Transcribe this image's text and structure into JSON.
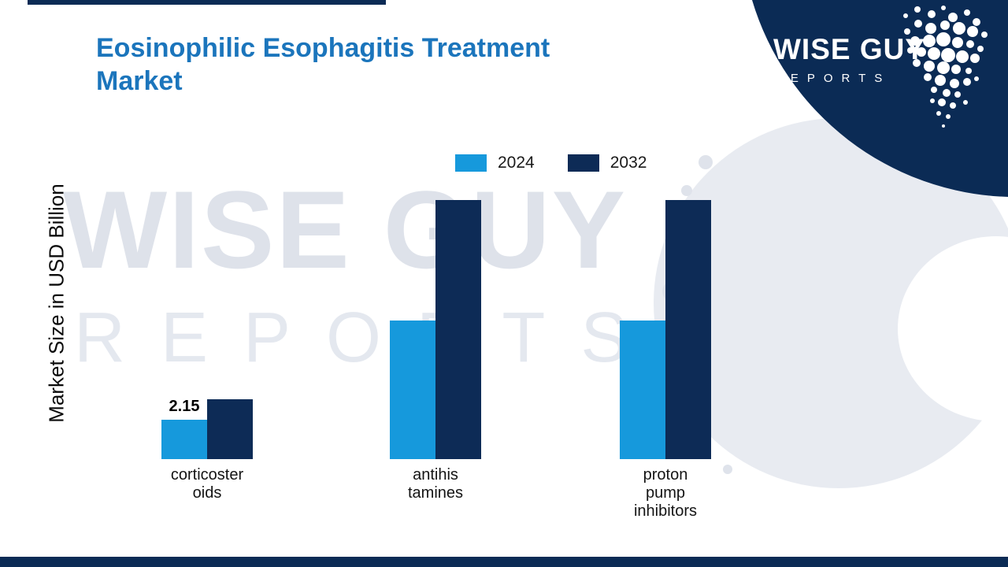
{
  "page": {
    "title": "Eosinophilic Esophagitis Treatment\nMarket"
  },
  "logo": {
    "brand_line1": "WISE GUY",
    "brand_line2": "REPORTS"
  },
  "watermark": {
    "line1": "WISE GUY",
    "line2": "REPORTS"
  },
  "chart_data": {
    "type": "bar",
    "title": "Eosinophilic Esophagitis Treatment Market",
    "ylabel": "Market Size in USD Billion",
    "unit": "USD Billion",
    "categories": [
      "corticosteroids",
      "antihistamines",
      "proton pump inhibitors"
    ],
    "category_display": [
      "corticoster\noids",
      "antihis\ntamines",
      "proton\npump\ninhibitors"
    ],
    "series": [
      {
        "name": "2024",
        "color": "#1699dc",
        "values": [
          2.15,
          7.55,
          7.55
        ]
      },
      {
        "name": "2032",
        "color": "#0d2b56",
        "values": [
          3.25,
          14.1,
          14.1
        ]
      }
    ],
    "value_labels": [
      {
        "series_index": 0,
        "category_index": 0,
        "text": "2.15"
      }
    ],
    "legend_position": "top-center",
    "gridlines": false,
    "axes_shown": false,
    "ylim": [
      0,
      15
    ]
  },
  "colors": {
    "title_blue": "#1b75bc",
    "bar_2024": "#1699dc",
    "bar_2032": "#0d2b56",
    "corner_navy": "#0b2b55"
  }
}
